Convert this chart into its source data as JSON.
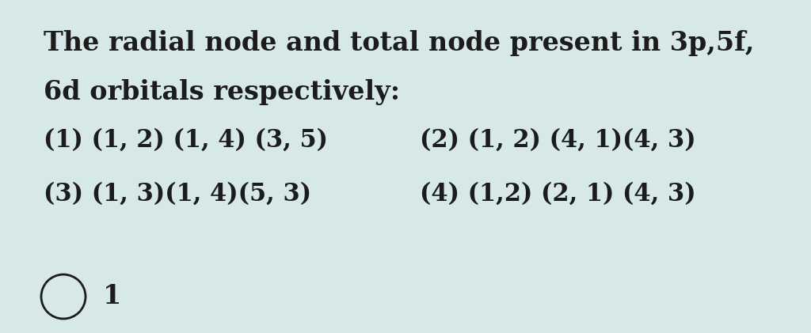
{
  "background_color": "#d6e8e8",
  "title_line1": "The radial node and total node present in 3p,5f,",
  "title_line2": "6d orbitals respectively:",
  "option1": "(1) (1, 2) (1, 4) (3, 5)",
  "option2": "(2) (1, 2) (4, 1)(4, 3)",
  "option3": "(3) (1, 3)(1, 4)(5, 3)",
  "option4": "(4) (1,2) (2, 1) (4̸, 3)",
  "answer": "1",
  "text_color": "#1c1c1c",
  "font_size_title": 24,
  "font_size_options": 22,
  "font_size_answer": 24,
  "fig_width": 10.24,
  "fig_height": 4.21,
  "dpi": 100
}
